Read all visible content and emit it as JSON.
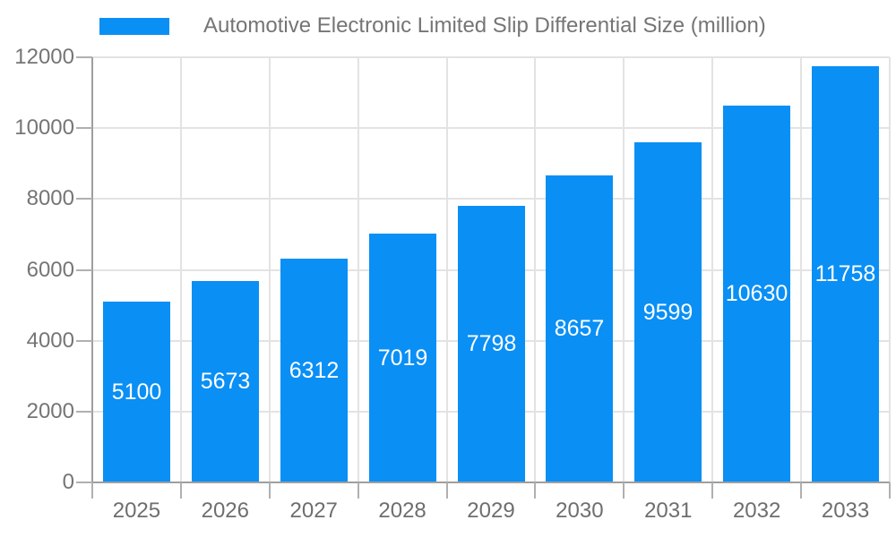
{
  "legend": {
    "label": "Automotive Electronic Limited Slip Differential Size (million)"
  },
  "colors": {
    "bar": "#0a8ff5",
    "grid": "#e3e3e3",
    "axis": "#9e9e9e",
    "tick": "#b0b0b0",
    "axis_text": "#757575",
    "value_label_text": "#ffffff",
    "background": "#ffffff"
  },
  "chart_data": {
    "type": "bar",
    "title": "Automotive Electronic Limited Slip Differential Size (million)",
    "categories": [
      "2025",
      "2026",
      "2027",
      "2028",
      "2029",
      "2030",
      "2031",
      "2032",
      "2033"
    ],
    "values": [
      5100,
      5673,
      6312,
      7019,
      7798,
      8657,
      9599,
      10630,
      11758
    ],
    "value_labels": [
      "5100",
      "5673",
      "6312",
      "7019",
      "7798",
      "8657",
      "9599",
      "10630",
      "11758"
    ],
    "xlabel": "",
    "ylabel": "",
    "ylim": [
      0,
      12000
    ],
    "yticks": [
      0,
      2000,
      4000,
      6000,
      8000,
      10000,
      12000
    ],
    "grid": true,
    "legend_position": "top",
    "bar_label_position": "center"
  }
}
